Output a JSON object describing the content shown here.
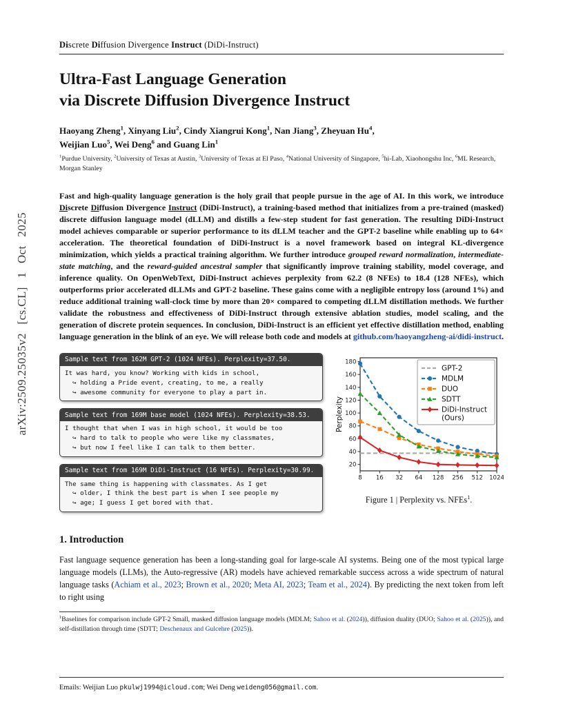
{
  "colors": {
    "link_blue": "#1b45b8",
    "box_header_bg": "#3e3e3e"
  },
  "sidebar": {
    "arxiv_label": "arXiv:2509.25035v2 [cs.CL] 1 Oct 2025"
  },
  "header": {
    "runs": [
      {
        "t": "Di",
        "c": "b"
      },
      {
        "t": "screte "
      },
      {
        "t": "Di",
        "c": "b"
      },
      {
        "t": "ffusion Divergence "
      },
      {
        "t": "Instruct",
        "c": "b"
      },
      {
        "t": " (DiDi-Instruct)"
      }
    ]
  },
  "title": {
    "lines": [
      "Ultra-Fast Language Generation",
      "via Discrete Diffusion Divergence Instruct"
    ]
  },
  "authors": {
    "line1_runs": [
      {
        "t": "Haoyang Zheng"
      },
      {
        "t": "1",
        "sup": true
      },
      {
        "t": ", Xinyang Liu"
      },
      {
        "t": "2",
        "sup": true
      },
      {
        "t": ", Cindy Xiangrui Kong"
      },
      {
        "t": "1",
        "sup": true
      },
      {
        "t": ", Nan Jiang"
      },
      {
        "t": "3",
        "sup": true
      },
      {
        "t": ", Zheyuan Hu"
      },
      {
        "t": "4",
        "sup": true
      },
      {
        "t": ","
      }
    ],
    "line2_runs": [
      {
        "t": "Weijian Luo"
      },
      {
        "t": "5",
        "sup": true
      },
      {
        "t": ", Wei Deng"
      },
      {
        "t": "6",
        "sup": true
      },
      {
        "t": " and Guang Lin"
      },
      {
        "t": "1",
        "sup": true
      }
    ]
  },
  "affiliations": {
    "runs": [
      {
        "t": "1",
        "sup": true
      },
      {
        "t": "Purdue University, "
      },
      {
        "t": "2",
        "sup": true
      },
      {
        "t": "University of Texas at Austin, "
      },
      {
        "t": "3",
        "sup": true
      },
      {
        "t": "University of Texas at El Paso, "
      },
      {
        "t": "4",
        "sup": true
      },
      {
        "t": "National University of Singapore, "
      },
      {
        "t": "5",
        "sup": true
      },
      {
        "t": "hi-Lab, Xiaohongshu Inc, "
      },
      {
        "t": "6",
        "sup": true
      },
      {
        "t": "ML Research, Morgan Stanley"
      }
    ]
  },
  "abstract": {
    "runs": [
      {
        "t": "Fast and high-quality language generation is the holy grail that people pursue in the age of AI. In this work, we introduce "
      },
      {
        "t": "Di",
        "c": "ul"
      },
      {
        "t": "screte "
      },
      {
        "t": "Di",
        "c": "ul"
      },
      {
        "t": "ffusion Divergence "
      },
      {
        "t": "Instruct",
        "c": "ul"
      },
      {
        "t": " (DiDi-Instruct), a training-based method that initializes from a pre-trained (masked) discrete diffusion language model (dLLM) and distills a few-step student for fast generation. The resulting DiDi-Instruct model achieves comparable or superior performance to its dLLM teacher and the GPT-2 baseline while enabling up to 64× acceleration. The theoretical foundation of DiDi-Instruct is a novel framework based on integral KL-divergence minimization, which yields a practical training algorithm. We further introduce "
      },
      {
        "t": "grouped reward normalization",
        "c": "i"
      },
      {
        "t": ", "
      },
      {
        "t": "intermediate-state matching",
        "c": "i"
      },
      {
        "t": ", and the "
      },
      {
        "t": "reward-guided ancestral sampler",
        "c": "i"
      },
      {
        "t": " that significantly improve training stability, model coverage, and inference quality. On OpenWebText, DiDi-Instruct achieves perplexity from 62.2 (8 NFEs) to 18.4 (128 NFEs), which outperforms prior accelerated dLLMs and GPT-2 baseline. These gains come with a negligible entropy loss (around 1%) and reduce additional training wall-clock time by more than 20× compared to competing dLLM distillation methods. We further validate the robustness and effectiveness of DiDi-Instruct through extensive ablation studies, model scaling, and the generation of discrete protein sequences. In conclusion, DiDi-Instruct is an efficient yet effective distillation method, enabling language generation in the blink of an eye. We will release both code and models at "
      },
      {
        "t": "github.com/haoyangzheng-ai/didi-instruct",
        "c": "link b"
      },
      {
        "t": "."
      }
    ]
  },
  "samples": {
    "boxes": [
      {
        "header": "Sample text from 162M GPT-2 (1024 NFEs). Perplexity=37.50.",
        "lines": [
          "It was hard, you know? Working with kids in school,",
          "↪ holding a Pride event, creating, to me, a really",
          "↪ awesome community for everyone to play a part in."
        ]
      },
      {
        "header": "Sample text from 169M base model (1024 NFEs). Perplexity=38.53.",
        "lines": [
          "I thought that when I was in high school, it would be too",
          "↪ hard to talk to people who were like my classmates,",
          "↪ but now I feel like I can talk to them better."
        ]
      },
      {
        "header": "Sample text from 169M DiDi-Instruct (16 NFEs). Perplexity=30.99.",
        "lines": [
          "The same thing is happening with classmates. As I get",
          "↪ older, I think the best part is when I see people my",
          "↪ age; I guess I get bored with that."
        ]
      }
    ]
  },
  "figure": {
    "caption_runs": [
      {
        "t": "Figure 1 | Perplexity vs. NFEs"
      },
      {
        "t": "1",
        "sup": true
      },
      {
        "t": "."
      }
    ]
  },
  "chart_data": {
    "type": "line",
    "title": "",
    "xlabel": "",
    "ylabel": "Perplexity",
    "x_ticks": [
      "8",
      "16",
      "32",
      "64",
      "128",
      "256",
      "512",
      "1024"
    ],
    "x_scale": "log2-categorical",
    "y_ticks": [
      20,
      40,
      60,
      80,
      100,
      120,
      140,
      160,
      180
    ],
    "ylim": [
      10,
      186
    ],
    "grid": false,
    "legend_position": "top-right",
    "series": [
      {
        "name": "GPT-2",
        "color": "#a8a8a8",
        "style": "dashed",
        "marker": "none",
        "values": [
          37.5,
          37.5,
          37.5,
          37.5,
          37.5,
          37.5,
          37.5,
          37.5
        ]
      },
      {
        "name": "MDLM",
        "color": "#1f77b4",
        "style": "dashed",
        "marker": "circle",
        "values": [
          177,
          126,
          94,
          72,
          57,
          47,
          41,
          36
        ]
      },
      {
        "name": "DUO",
        "color": "#ff7f0e",
        "style": "dashed",
        "marker": "square",
        "values": [
          87,
          75,
          61,
          51,
          45,
          40,
          36,
          33
        ]
      },
      {
        "name": "SDTT",
        "color": "#2ca02c",
        "style": "dashed",
        "marker": "triangle",
        "values": [
          130,
          100,
          66,
          48,
          41,
          36,
          33,
          31
        ]
      },
      {
        "name": "DiDi-Instruct (Ours)",
        "legend_lines": [
          "DiDi-Instruct",
          "(Ours)"
        ],
        "color": "#d62728",
        "style": "solid",
        "marker": "diamond",
        "values": [
          62.2,
          42,
          31,
          24,
          20,
          19.2,
          18.8,
          18.4
        ]
      }
    ]
  },
  "introduction": {
    "heading": "1. Introduction",
    "runs": [
      {
        "t": "Fast language sequence generation has been a long-standing goal for large-scale AI systems. Being one of the most typical large language models (LLMs), the Auto-regressive (AR) models have achieved remarkable success across a wide spectrum of natural language tasks ("
      },
      {
        "t": "Achiam et al., 2023",
        "c": "link"
      },
      {
        "t": "; "
      },
      {
        "t": "Brown et al., 2020",
        "c": "link"
      },
      {
        "t": "; "
      },
      {
        "t": "Meta AI, 2023",
        "c": "link"
      },
      {
        "t": "; "
      },
      {
        "t": "Team et al., 2024",
        "c": "link"
      },
      {
        "t": "). By predicting the next token from left to right using"
      }
    ]
  },
  "footnote": {
    "runs": [
      {
        "t": "1",
        "sup": true
      },
      {
        "t": "Baselines for comparison include GPT-2 Small, masked diffusion language models (MDLM; "
      },
      {
        "t": "Sahoo et al.",
        "c": "link"
      },
      {
        "t": " ("
      },
      {
        "t": "2024",
        "c": "link"
      },
      {
        "t": ")), diffusion duality (DUO; "
      },
      {
        "t": "Sahoo et al.",
        "c": "link"
      },
      {
        "t": " ("
      },
      {
        "t": "2025",
        "c": "link"
      },
      {
        "t": ")), and self-distillation through time (SDTT; "
      },
      {
        "t": "Deschenaux and Gulcehre",
        "c": "link"
      },
      {
        "t": " ("
      },
      {
        "t": "2025",
        "c": "link"
      },
      {
        "t": "))."
      }
    ]
  },
  "footer": {
    "runs": [
      {
        "t": "Emails: Weijian Luo "
      },
      {
        "t": "pkulwj1994@icloud.com",
        "c": "mono"
      },
      {
        "t": "; Wei Deng "
      },
      {
        "t": "weideng056@gmail.com",
        "c": "mono"
      },
      {
        "t": "."
      }
    ]
  }
}
